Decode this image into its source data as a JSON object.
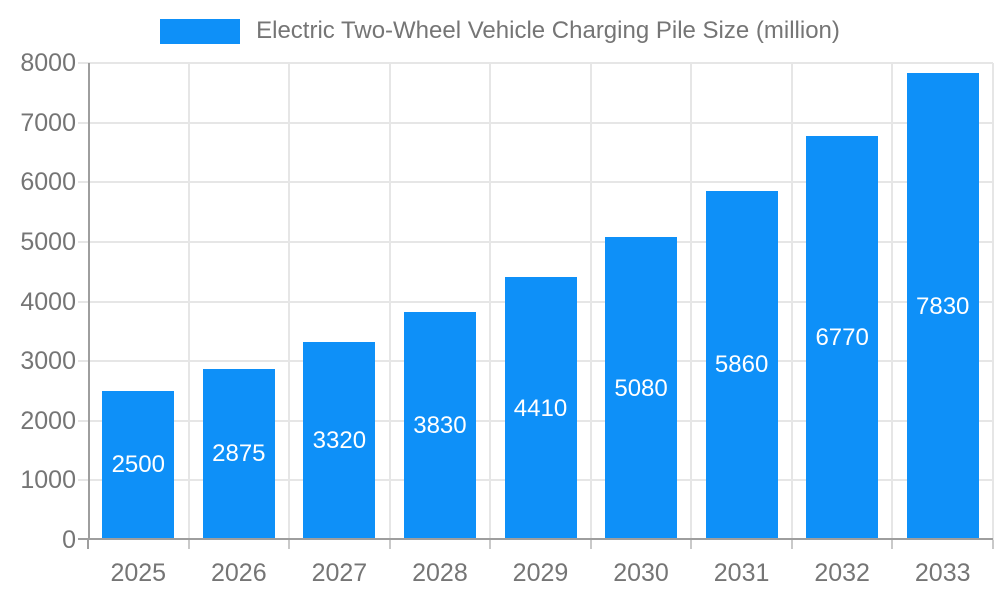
{
  "chart_data": {
    "type": "bar",
    "title": "Electric Two-Wheel Vehicle Charging Pile Size (million)",
    "legend": {
      "position": "top",
      "entries": [
        {
          "label": "Electric Two-Wheel Vehicle Charging Pile Size (million)",
          "color": "#0e90f8"
        }
      ]
    },
    "categories": [
      "2025",
      "2026",
      "2027",
      "2028",
      "2029",
      "2030",
      "2031",
      "2032",
      "2033"
    ],
    "values": [
      2500,
      2875,
      3320,
      3830,
      4410,
      5080,
      5860,
      6770,
      7830
    ],
    "value_labels_visible": true,
    "xlabel": "",
    "ylabel": "",
    "ylim": [
      0,
      8000
    ],
    "yticks": [
      0,
      1000,
      2000,
      3000,
      4000,
      5000,
      6000,
      7000,
      8000
    ],
    "grid": true,
    "colors": {
      "bar": "#0e90f8",
      "bar_value_text": "#ffffff",
      "axis_text": "#757575",
      "axis_line": "#9e9e9e",
      "gridline": "#e6e6e6",
      "tick": "#c9c9c9",
      "background": "#ffffff"
    }
  }
}
